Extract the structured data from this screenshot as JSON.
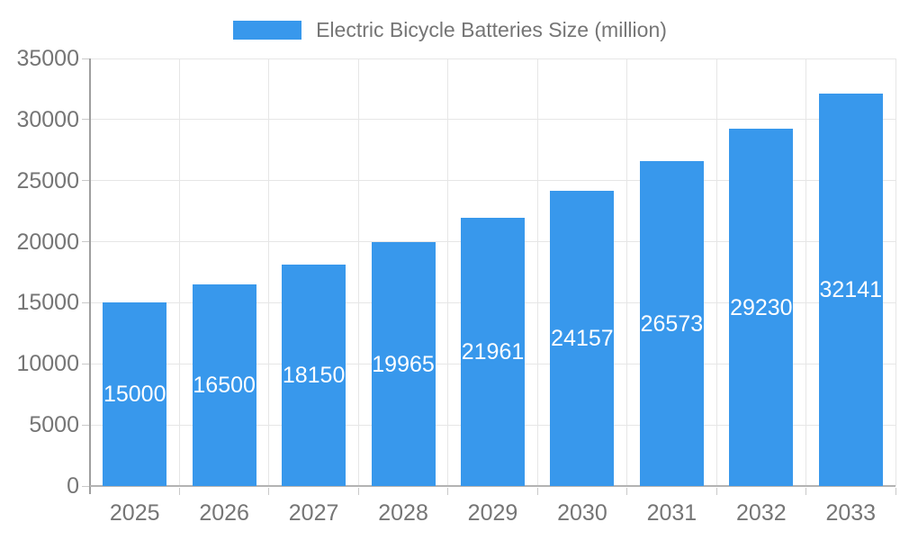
{
  "legend": {
    "label": "Electric Bicycle Batteries Size (million)",
    "swatch_color": "#3898ec",
    "text_color": "#757575"
  },
  "chart_data": {
    "type": "bar",
    "title": "Electric Bicycle Batteries Size (million)",
    "categories": [
      "2025",
      "2026",
      "2027",
      "2028",
      "2029",
      "2030",
      "2031",
      "2032",
      "2033"
    ],
    "series": [
      {
        "name": "Electric Bicycle Batteries Size (million)",
        "values": [
          15000,
          16500,
          18150,
          19965,
          21961,
          24157,
          26573,
          29230,
          32141
        ]
      }
    ],
    "xlabel": "",
    "ylabel": "",
    "ylim": [
      0,
      35000
    ],
    "ytick_step": 5000,
    "grid": true,
    "legend_position": "top",
    "bar_color": "#3898ec",
    "bar_label_color": "#ffffff",
    "axis_text_color": "#757575",
    "grid_color": "#e6e6e6",
    "axis_line_color": "#9e9e9e",
    "baseline_color": "#b3b3b3",
    "tick_color": "#c9c9c9"
  }
}
